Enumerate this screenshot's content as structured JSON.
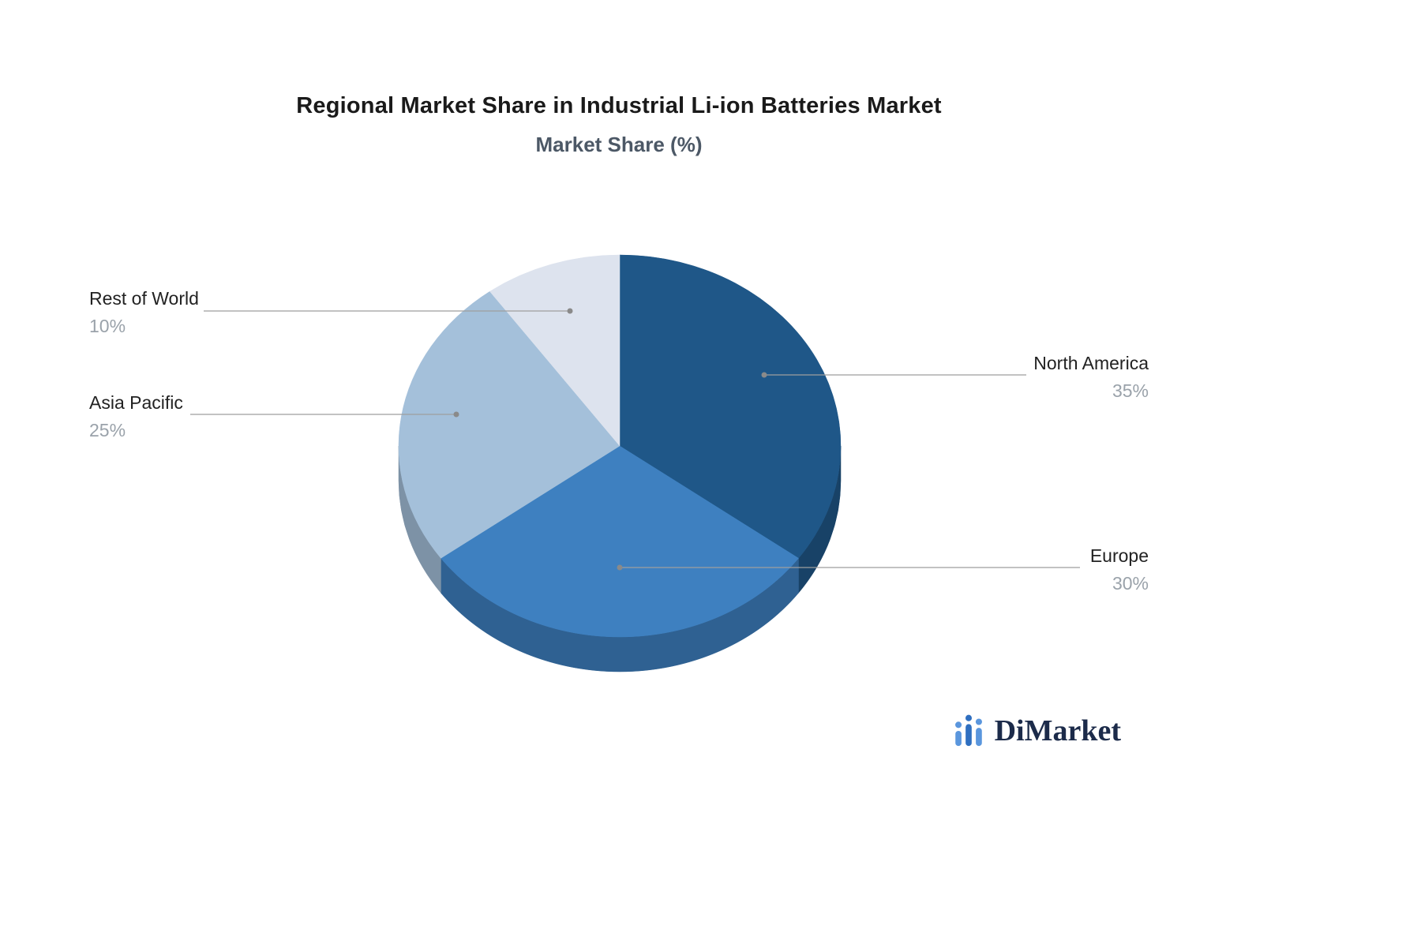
{
  "chart": {
    "title": "Regional Market Share in Industrial Li-ion Batteries Market",
    "subtitle": "Market Share (%)"
  },
  "chart_data": {
    "type": "pie",
    "title": "Regional Market Share in Industrial Li-ion Batteries Market",
    "subtitle": "Market Share (%)",
    "unit": "%",
    "legend_position": "none",
    "labels_style": "callout-leader-lines",
    "slices": [
      {
        "label": "North America",
        "value": 35,
        "display": "35%",
        "color": "#1f5788"
      },
      {
        "label": "Europe",
        "value": 30,
        "display": "30%",
        "color": "#3e80c0"
      },
      {
        "label": "Asia Pacific",
        "value": 25,
        "display": "25%",
        "color": "#a4c0da"
      },
      {
        "label": "Rest of World",
        "value": 10,
        "display": "10%",
        "color": "#dde3ee"
      }
    ],
    "style": {
      "leader_line_color": "#9e9e9e",
      "dot_color": "#8a8a8a",
      "label_color": "#222222",
      "value_color": "#9aa2aa"
    }
  },
  "logo": {
    "text": "DiMarket",
    "icon": "bar-chart-dots-icon",
    "icon_color": "#2f6fc0",
    "text_color": "#1c2b4a"
  }
}
